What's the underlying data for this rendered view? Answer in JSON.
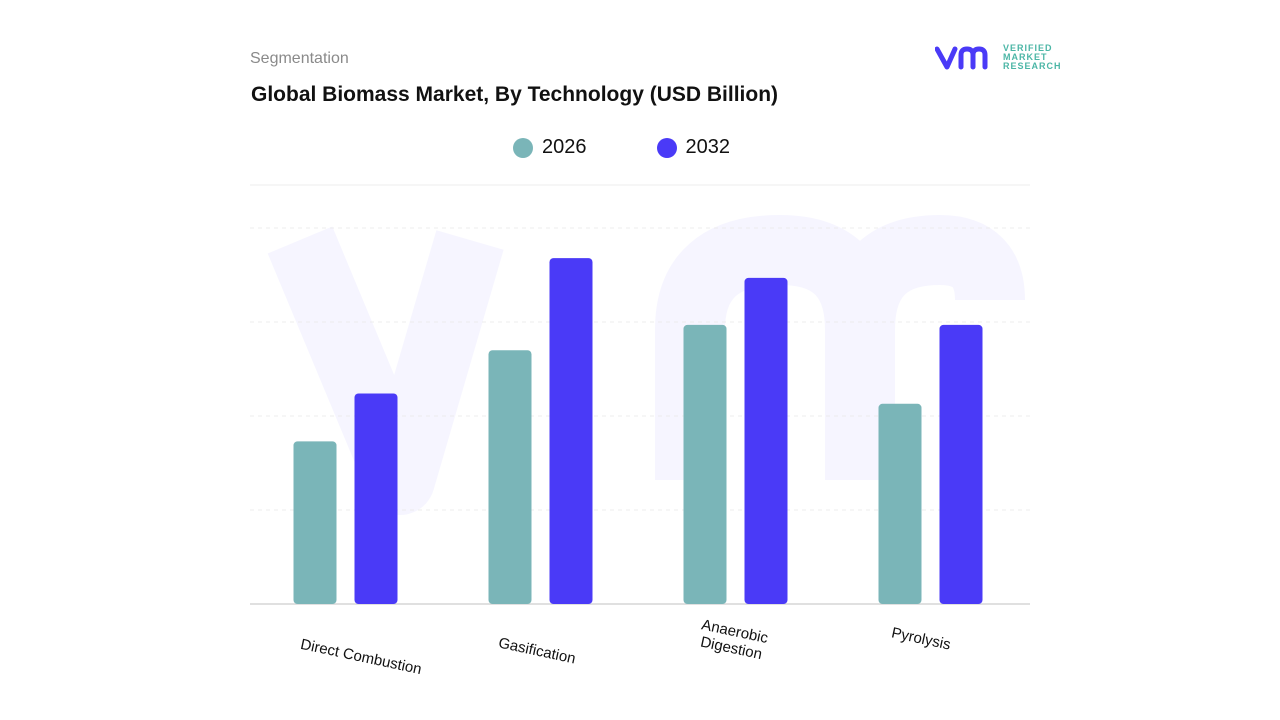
{
  "header": {
    "segment_label": "Segmentation",
    "title": "Global Biomass Market, By Technology (USD Billion)"
  },
  "logo": {
    "line1": "VERIFIED",
    "line2": "MARKET",
    "line3": "RESEARCH",
    "mark": "vmr"
  },
  "colors": {
    "series_2026": "#7ab5b8",
    "series_2032": "#4a3af7",
    "grid": "#e6e6e6",
    "logo_mark": "#4a3af7",
    "logo_text": "#4bb6a6"
  },
  "chart_data": {
    "type": "bar",
    "title": "Global Biomass Market, By Technology (USD Billion)",
    "xlabel": "",
    "ylabel": "",
    "categories": [
      "Direct Combustion",
      "Gasification",
      "Anaerobic\nDigestion",
      "Pyrolysis"
    ],
    "series": [
      {
        "name": "2026",
        "values": [
          1.73,
          2.7,
          2.97,
          2.13
        ]
      },
      {
        "name": "2032",
        "values": [
          2.24,
          3.68,
          3.47,
          2.97
        ]
      }
    ],
    "ylim": [
      0,
      4
    ],
    "grid": true,
    "legend": "top-center"
  }
}
